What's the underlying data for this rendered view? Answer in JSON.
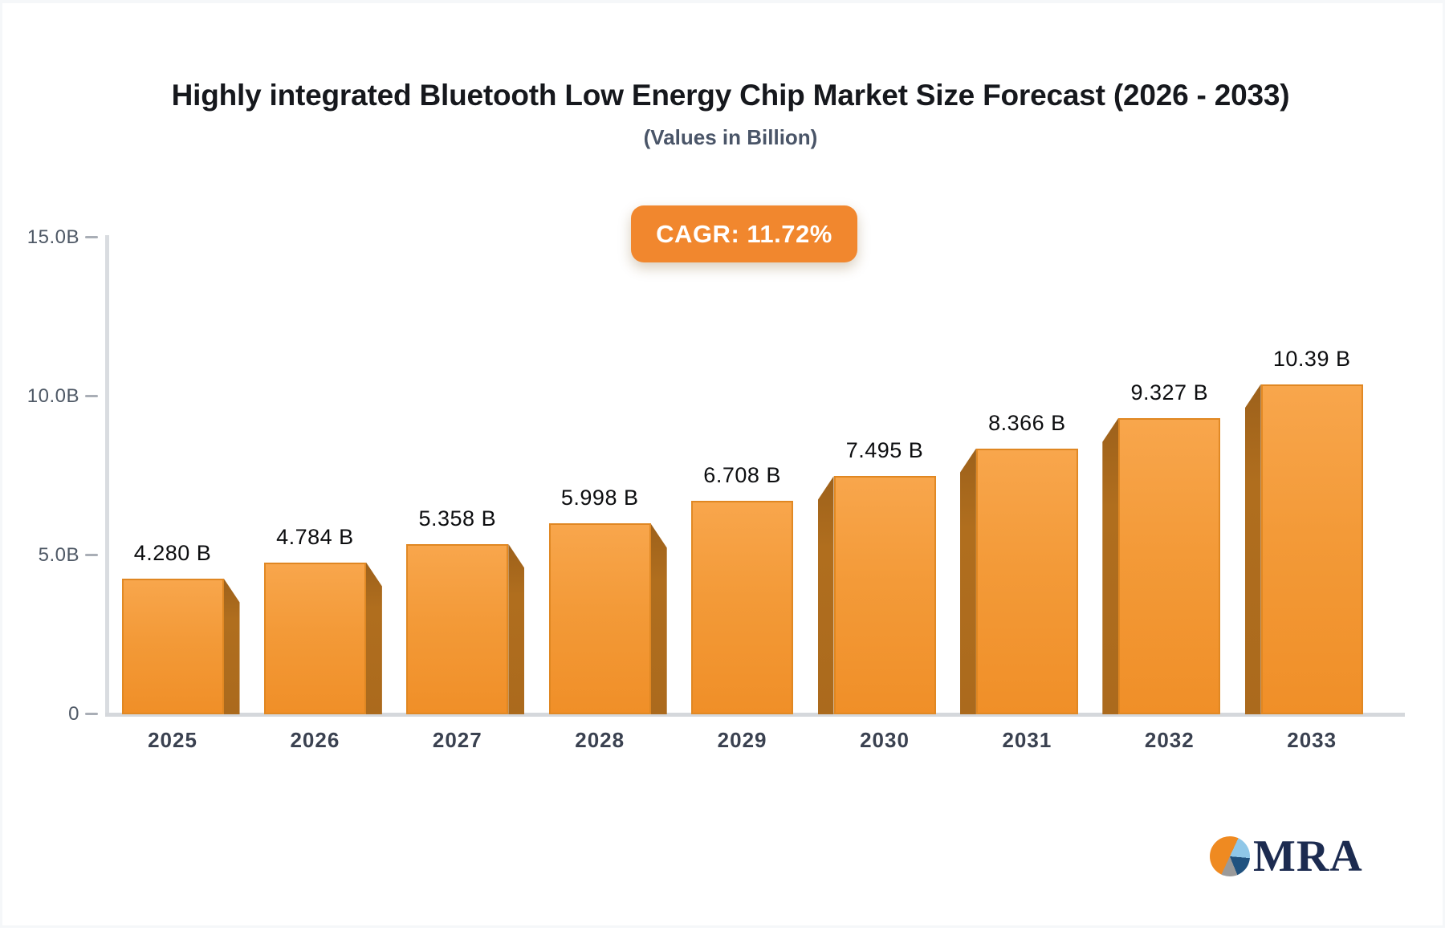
{
  "page": {
    "title": "Highly integrated Bluetooth Low Energy Chip Market Size Forecast (2026 - 2033)",
    "subtitle": "(Values in Billion)",
    "cagr_label": "CAGR: 11.72%",
    "brand": {
      "name": "MRA",
      "icon": "pie-chart-logo-icon"
    }
  },
  "colors": {
    "bar_top": "#F8A64C",
    "bar_bottom": "#F08F28",
    "bar_side_dark": "#AB6A1D",
    "bar_border": "#DE8621",
    "badge_orange": "#F1872E",
    "axis_line": "#D9DCE0",
    "tick_dash": "#A9AEB6",
    "title_text": "#16181D",
    "subtitle_text": "#4A5568",
    "y_label_text": "#4F5966",
    "year_text": "#3A4150",
    "value_text": "#0D0E10",
    "logo_navy": "#1C2B50",
    "logo_light_blue": "#8FC7E8",
    "logo_blue": "#20527F",
    "logo_gray": "#9A9A9A",
    "logo_orange": "#EF8A21"
  },
  "chart_data": {
    "type": "bar",
    "title": "Highly integrated Bluetooth Low Energy Chip Market Size Forecast (2026 - 2033)",
    "subtitle": "(Values in Billion)",
    "annotation": "CAGR: 11.72%",
    "categories": [
      "2025",
      "2026",
      "2027",
      "2028",
      "2029",
      "2030",
      "2031",
      "2032",
      "2033"
    ],
    "values": [
      4.28,
      4.784,
      5.358,
      5.998,
      6.708,
      7.495,
      8.366,
      9.327,
      10.39
    ],
    "value_labels": [
      "4.280 B",
      "4.784 B",
      "5.358 B",
      "5.998 B",
      "6.708 B",
      "7.495 B",
      "8.366 B",
      "9.327 B",
      "10.39 B"
    ],
    "xlabel": "",
    "ylabel": "",
    "ylim": [
      0,
      15
    ],
    "yticks": [
      {
        "value": 0,
        "label": "0"
      },
      {
        "value": 5,
        "label": "5.0B"
      },
      {
        "value": 10,
        "label": "10.0B"
      },
      {
        "value": 15,
        "label": "15.0B"
      }
    ],
    "grid": false,
    "legend": "none",
    "style": "3d-perspective-bars, single orange series, value labels above bars"
  }
}
